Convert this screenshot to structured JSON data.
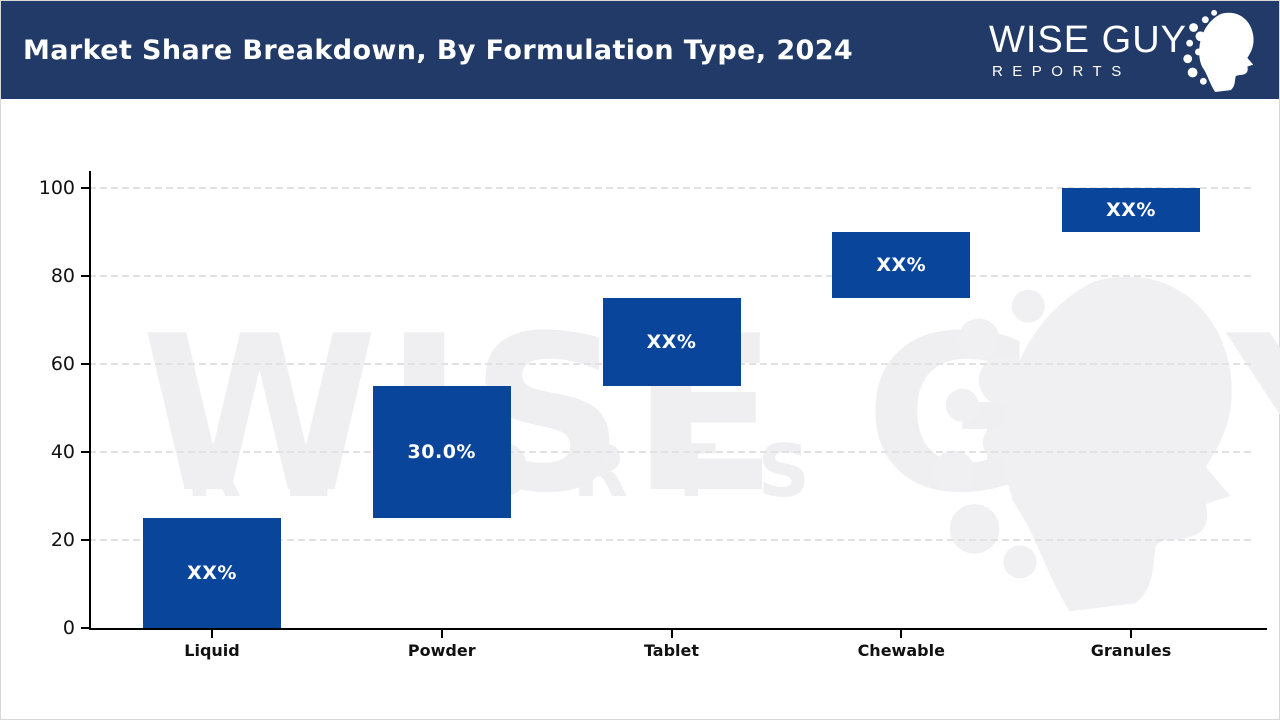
{
  "header": {
    "title": "Market Share Breakdown, By Formulation Type, 2024",
    "bg_color": "#213a67",
    "logo": {
      "line1": "WISE GUY",
      "line2": "REPORTS"
    }
  },
  "watermark": {
    "line1": "WISE GUY",
    "line2": "REPORTS"
  },
  "chart_data": {
    "type": "bar",
    "subtype": "waterfall",
    "title": "Market Share Breakdown, By Formulation Type, 2024",
    "categories": [
      "Liquid",
      "Powder",
      "Tablet",
      "Chewable",
      "Granules"
    ],
    "segments": [
      {
        "category": "Liquid",
        "start": 0,
        "end": 25,
        "label": "XX%"
      },
      {
        "category": "Powder",
        "start": 25,
        "end": 55,
        "label": "30.0%"
      },
      {
        "category": "Tablet",
        "start": 55,
        "end": 75,
        "label": "XX%"
      },
      {
        "category": "Chewable",
        "start": 75,
        "end": 90,
        "label": "XX%"
      },
      {
        "category": "Granules",
        "start": 90,
        "end": 100,
        "label": "XX%"
      }
    ],
    "yticks": [
      0,
      20,
      40,
      60,
      80,
      100
    ],
    "ylim": [
      0,
      105
    ],
    "xlabel": "",
    "ylabel": "",
    "bar_color": "#0a459c",
    "grid": "horizontal-dashed",
    "legend": "none"
  }
}
